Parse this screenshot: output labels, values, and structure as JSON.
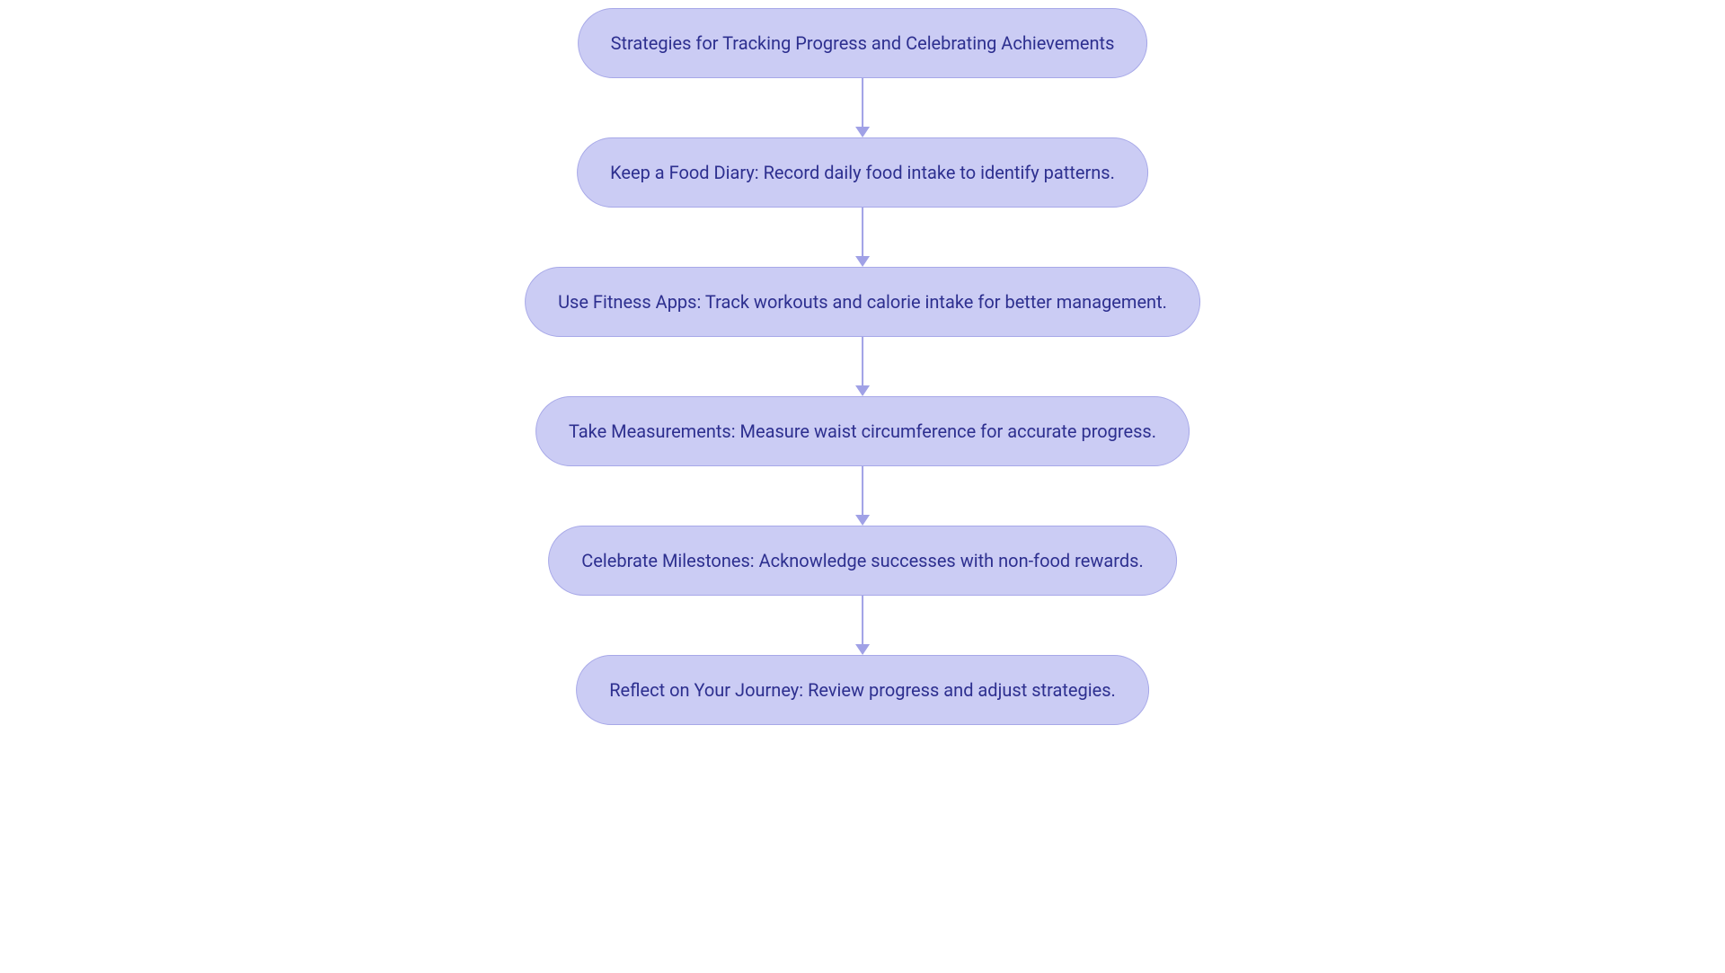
{
  "flowchart": {
    "type": "flowchart",
    "direction": "vertical",
    "background_color": "#ffffff",
    "node_bg_color": "#cbccf4",
    "node_border_color": "#a7a8e8",
    "node_text_color": "#2d2f8f",
    "arrow_color": "#a0a1e6",
    "node_fontsize": 20,
    "node_border_radius": 40,
    "node_padding_x": 36,
    "node_padding_y": 24,
    "node_min_height": 78,
    "arrow_gap": 66,
    "nodes": [
      {
        "text": "Strategies for Tracking Progress and Celebrating Achievements"
      },
      {
        "text": "Keep a Food Diary: Record daily food intake to identify patterns."
      },
      {
        "text": "Use Fitness Apps: Track workouts and calorie intake for better management."
      },
      {
        "text": "Take Measurements: Measure waist circumference for accurate progress."
      },
      {
        "text": "Celebrate Milestones: Acknowledge successes with non-food rewards."
      },
      {
        "text": "Reflect on Your Journey: Review progress and adjust strategies."
      }
    ]
  }
}
